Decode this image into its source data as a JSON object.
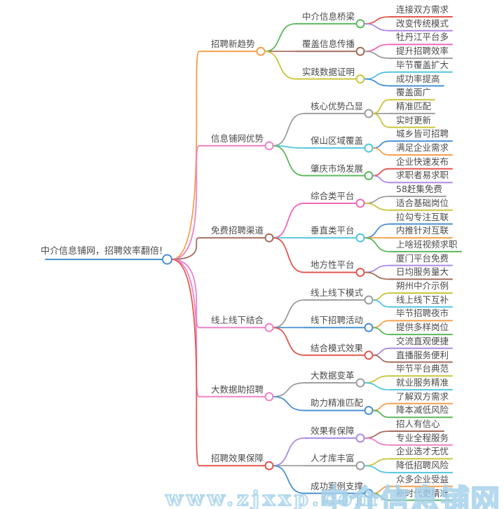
{
  "palette": {
    "blue": "#4a90d2",
    "orange": "#f5a04d",
    "pink": "#ee82c8",
    "magenta": "#f068b8",
    "brown": "#a26e5e",
    "red": "#e2574f",
    "green": "#5cb85f",
    "olive": "#cbc53e",
    "gray": "#9e9e9e",
    "cyan": "#54c6e0",
    "purple": "#ab8be0"
  },
  "watermark": {
    "url_text": "www.zjxxp.com",
    "site_name": "中介信息铺网"
  },
  "mindmap": {
    "root": {
      "label": "中介信息铺网，招聘效率翻倍!",
      "color": "blue",
      "children": [
        {
          "label": "招聘新趋势",
          "color": "orange",
          "children": [
            {
              "label": "中介信息桥梁",
              "color": "green",
              "children": [
                {
                  "label": "连接双方需求",
                  "color": "red"
                },
                {
                  "label": "改变传统模式",
                  "color": "purple"
                }
              ]
            },
            {
              "label": "覆盖信息传播",
              "color": "brown",
              "children": [
                {
                  "label": "牡丹江平台多",
                  "color": "magenta"
                },
                {
                  "label": "提升招聘效率",
                  "color": "gray"
                }
              ]
            },
            {
              "label": "实践数据证明",
              "color": "olive",
              "children": [
                {
                  "label": "毕节覆盖扩大",
                  "color": "cyan"
                },
                {
                  "label": "成功率提高",
                  "color": "blue"
                }
              ]
            }
          ]
        },
        {
          "label": "信息铺网优势",
          "color": "pink",
          "children": [
            {
              "label": "核心优势凸显",
              "color": "gray",
              "children": [
                {
                  "label": "覆盖面广",
                  "color": "olive"
                },
                {
                  "label": "精准匹配",
                  "color": "gray"
                },
                {
                  "label": "实时更新",
                  "color": "olive"
                }
              ]
            },
            {
              "label": "保山区域覆盖",
              "color": "cyan",
              "children": [
                {
                  "label": "城乡皆可招聘",
                  "color": "blue"
                },
                {
                  "label": "满足企业需求",
                  "color": "orange"
                }
              ]
            },
            {
              "label": "肇庆市场发展",
              "color": "green",
              "children": [
                {
                  "label": "企业快速发布",
                  "color": "red"
                },
                {
                  "label": "求职者易求职",
                  "color": "purple"
                }
              ]
            }
          ]
        },
        {
          "label": "免费招聘渠道",
          "color": "brown",
          "children": [
            {
              "label": "综合类平台",
              "color": "magenta",
              "children": [
                {
                  "label": "58赶集免费",
                  "color": "gray"
                },
                {
                  "label": "适合基础岗位",
                  "color": "olive"
                }
              ]
            },
            {
              "label": "垂直类平台",
              "color": "cyan",
              "children": [
                {
                  "label": "拉勾专注互联",
                  "color": "blue"
                },
                {
                  "label": "内推针对互联",
                  "color": "orange"
                },
                {
                  "label": "上啥班视频求职",
                  "color": "green"
                }
              ]
            },
            {
              "label": "地方性平台",
              "color": "red",
              "children": [
                {
                  "label": "厦门平台免费",
                  "color": "purple"
                },
                {
                  "label": "日均服务量大",
                  "color": "brown"
                }
              ]
            }
          ]
        },
        {
          "label": "线上线下结合",
          "color": "pink",
          "children": [
            {
              "label": "线上线下模式",
              "color": "gray",
              "children": [
                {
                  "label": "朔州中介示例",
                  "color": "olive"
                },
                {
                  "label": "线上线下互补",
                  "color": "cyan"
                }
              ]
            },
            {
              "label": "线下招聘活动",
              "color": "blue",
              "children": [
                {
                  "label": "毕节招聘夜市",
                  "color": "orange"
                },
                {
                  "label": "提供多样岗位",
                  "color": "green"
                }
              ]
            },
            {
              "label": "结合模式效果",
              "color": "red",
              "children": [
                {
                  "label": "交流直观便捷",
                  "color": "purple"
                },
                {
                  "label": "直播服务便利",
                  "color": "brown"
                }
              ]
            }
          ]
        },
        {
          "label": "大数据助招聘",
          "color": "pink",
          "children": [
            {
              "label": "大数据变革",
              "color": "gray",
              "children": [
                {
                  "label": "毕节平台典范",
                  "color": "olive"
                },
                {
                  "label": "就业服务精准",
                  "color": "cyan"
                }
              ]
            },
            {
              "label": "助力精准匹配",
              "color": "blue",
              "children": [
                {
                  "label": "了解双方需求",
                  "color": "orange"
                },
                {
                  "label": "降本减低风险",
                  "color": "green"
                }
              ]
            }
          ]
        },
        {
          "label": "招聘效果保障",
          "color": "red",
          "children": [
            {
              "label": "效果有保障",
              "color": "purple",
              "children": [
                {
                  "label": "招人有信心",
                  "color": "brown"
                },
                {
                  "label": "专业全程服务",
                  "color": "pink"
                }
              ]
            },
            {
              "label": "人才库丰富",
              "color": "gray",
              "children": [
                {
                  "label": "企业选才无忧",
                  "color": "olive"
                },
                {
                  "label": "降低招聘风险",
                  "color": "cyan"
                }
              ]
            },
            {
              "label": "成功案例支撑",
              "color": "blue",
              "children": [
                {
                  "label": "众多企业受益",
                  "color": "orange"
                },
                {
                  "label": "新时代更精准",
                  "color": "green"
                }
              ]
            }
          ]
        }
      ]
    }
  }
}
